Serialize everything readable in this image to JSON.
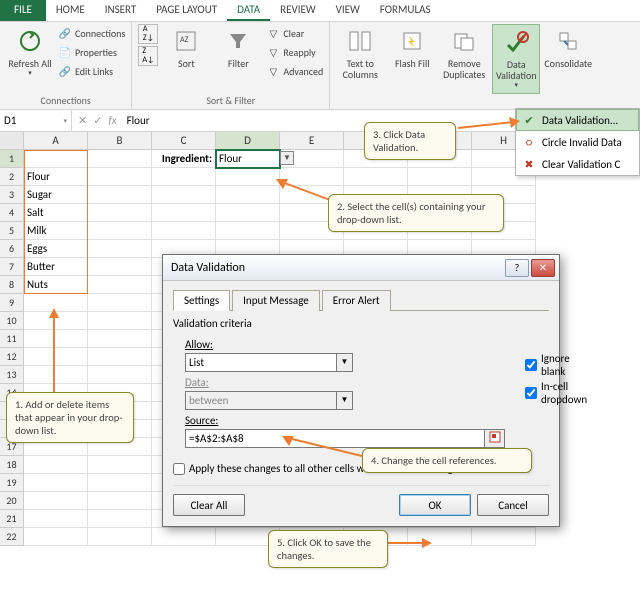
{
  "tabs": [
    "FILE",
    "HOME",
    "INSERT",
    "PAGE LAYOUT",
    "DATA",
    "REVIEW",
    "VIEW",
    "FORMULAS"
  ],
  "active_tab": "DATA",
  "ribbon": {
    "connections": {
      "label": "Connections",
      "btn": "Refresh All",
      "items": [
        "Connections",
        "Properties",
        "Edit Links"
      ]
    },
    "sortfilter": {
      "label": "Sort & Filter",
      "sort_az": "A→Z",
      "sort_za": "Z→A",
      "sort": "Sort",
      "filter": "Filter",
      "items": [
        "Clear",
        "Reapply",
        "Advanced"
      ]
    },
    "datatools": {
      "text_to_cols": "Text to Columns",
      "flash": "Flash Fill",
      "remove_dup": "Remove Duplicates",
      "data_val": "Data Validation",
      "consolidate": "Consolidate"
    }
  },
  "dv_menu": [
    "Data Validation...",
    "Circle Invalid Data",
    "Clear Validation C"
  ],
  "namebox": "D1",
  "formula": "Flour",
  "columns": [
    "A",
    "B",
    "C",
    "D",
    "E",
    "F",
    "G",
    "H"
  ],
  "sel_col": "D",
  "row_count": 22,
  "sel_row": 1,
  "ingredients": [
    "Flour",
    "Sugar",
    "Salt",
    "Milk",
    "Eggs",
    "Butter",
    "Nuts"
  ],
  "label_cell": "Ingredient:",
  "active_value": "Flour",
  "callouts": {
    "c1": "1. Add or delete items that appear in your drop-down list.",
    "c2": "2. Select the cell(s) containing your drop-down list.",
    "c3": "3. Click Data Validation.",
    "c4": "4. Change the cell references.",
    "c5": "5. Click OK to save the changes."
  },
  "dialog": {
    "title": "Data Validation",
    "tabs": [
      "Settings",
      "Input Message",
      "Error Alert"
    ],
    "section": "Validation criteria",
    "allow_label": "Allow:",
    "allow_value": "List",
    "ignore_blank": "Ignore blank",
    "incell": "In-cell dropdown",
    "data_label": "Data:",
    "data_value": "between",
    "source_label": "Source:",
    "source_value": "=$A$2:$A$8",
    "apply_text": "Apply these changes to all other cells with the same settings",
    "clear": "Clear All",
    "ok": "OK",
    "cancel": "Cancel"
  },
  "colors": {
    "accent": "#217346",
    "orange": "#ed7d31"
  }
}
